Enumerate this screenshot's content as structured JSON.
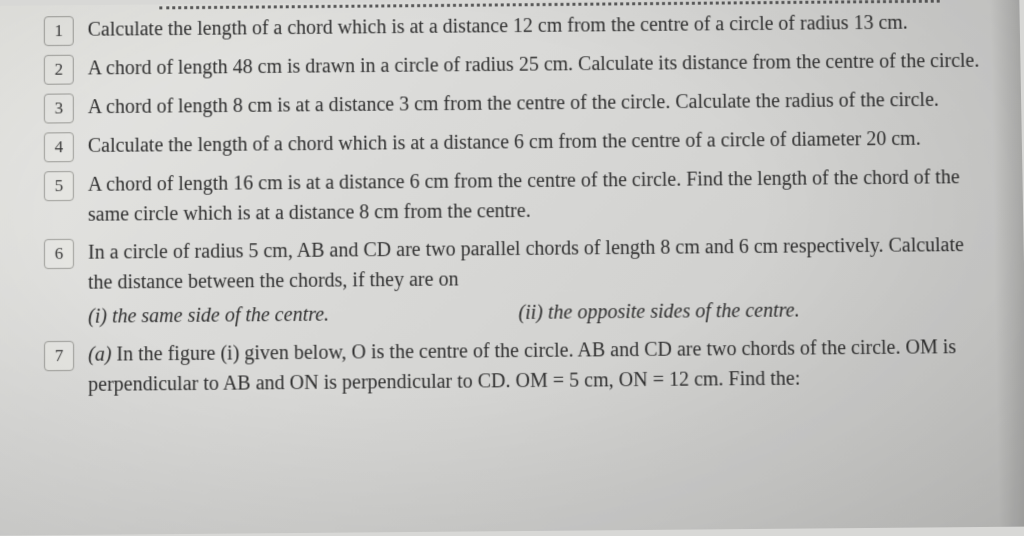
{
  "questions": [
    {
      "n": "1",
      "text": "Calculate the length of a chord which is at a distance 12 cm from the centre of a circle of radius 13 cm."
    },
    {
      "n": "2",
      "text": "A chord of length 48 cm is drawn in a circle of radius 25 cm. Calculate its distance from the centre of the circle."
    },
    {
      "n": "3",
      "text": "A chord of length 8 cm is at a distance 3 cm from the centre of the circle. Calculate the radius of the circle."
    },
    {
      "n": "4",
      "text": "Calculate the length of a chord which is at a distance 6 cm from the centre of a circle of diameter 20 cm."
    },
    {
      "n": "5",
      "text": "A chord of length 16 cm is at a distance 6 cm from the centre of the circle. Find the length of the chord of the same circle which is at a distance 8 cm from the centre."
    },
    {
      "n": "6",
      "text": "In a circle of radius 5 cm, AB and CD are two parallel chords of length 8 cm and 6 cm respectively. Calculate the distance between the chords, if they are on",
      "subs": [
        "(i) the same side of the centre.",
        "(ii) the opposite sides of the centre."
      ]
    },
    {
      "n": "7",
      "label_a": "(a)",
      "text": "In the figure (i) given below, O is the centre of the circle. AB and CD are two chords of the circle. OM is perpendicular to AB and ON is perpendicular to CD. OM = 5 cm, ON = 12 cm. Find the:"
    }
  ]
}
